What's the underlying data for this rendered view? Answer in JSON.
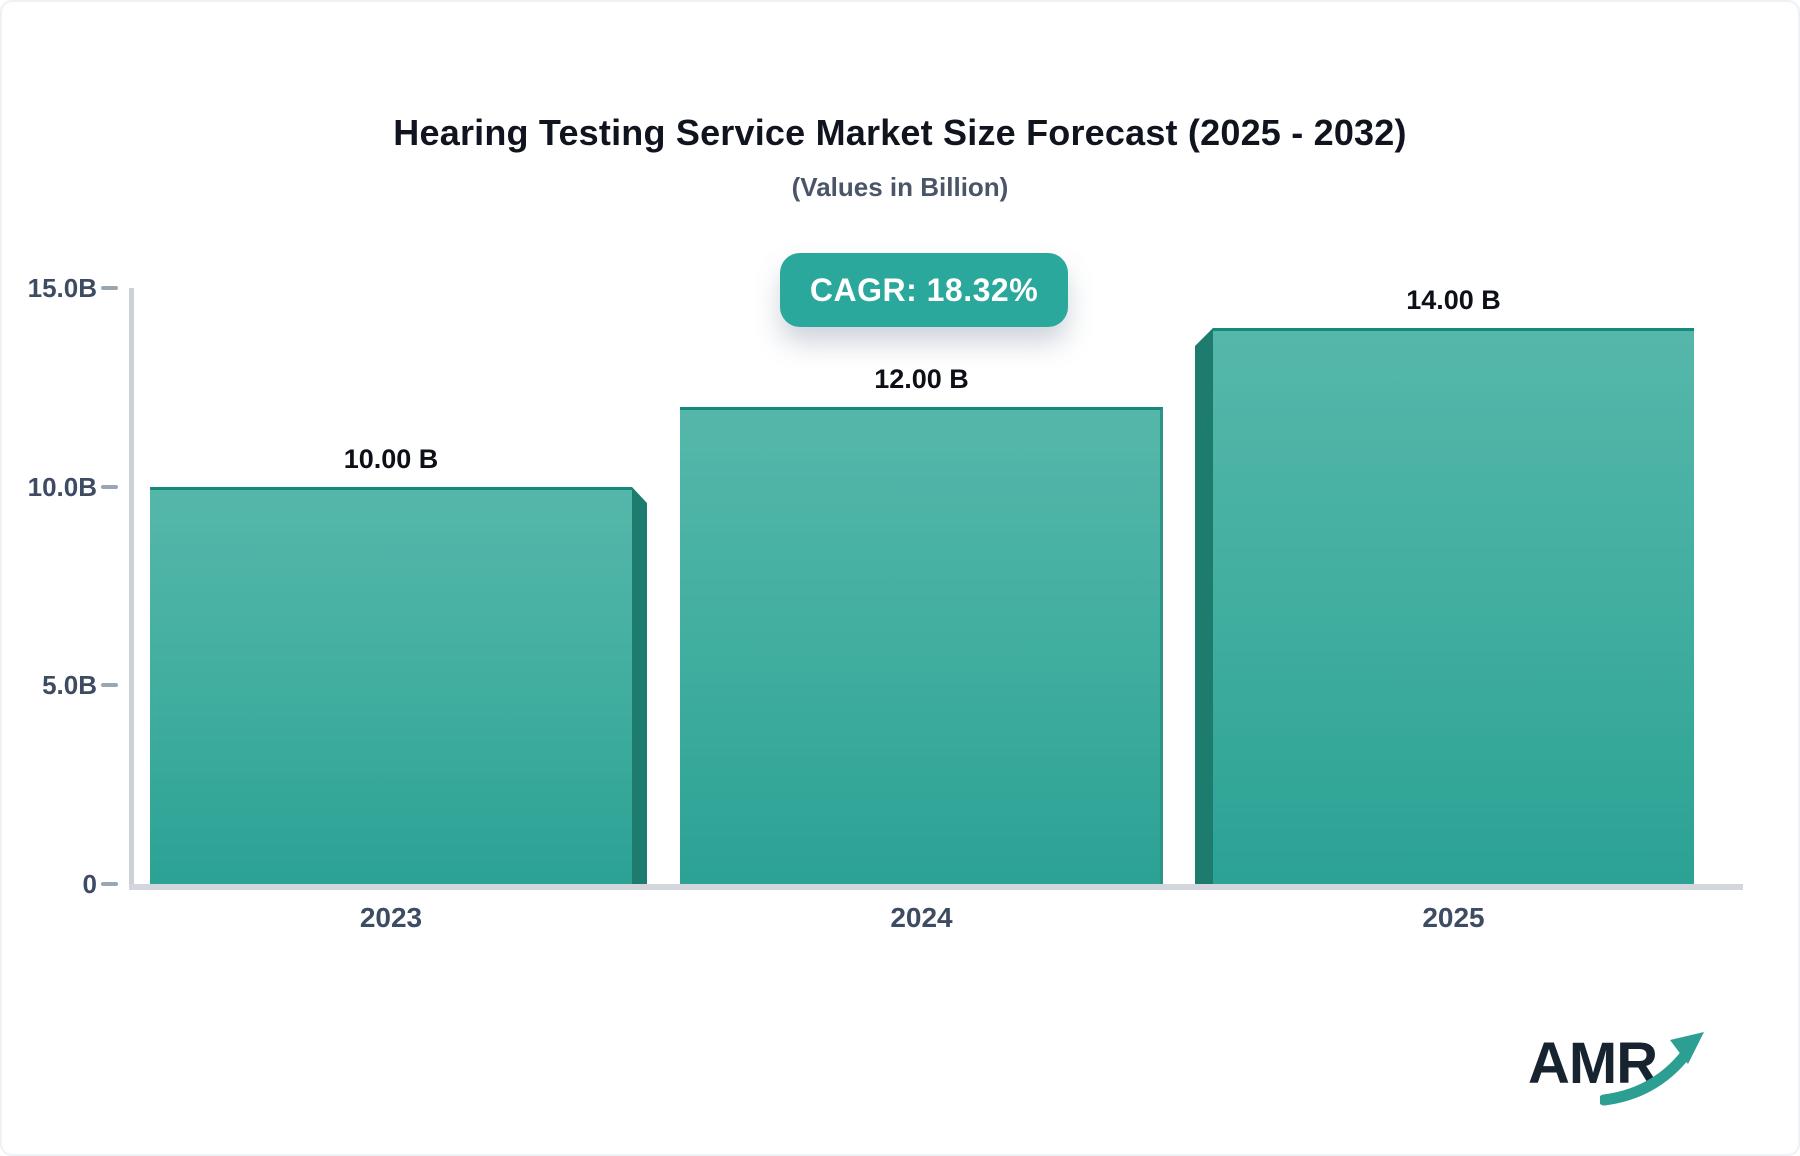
{
  "header": {
    "title": "Hearing Testing Service Market Size Forecast (2025 - 2032)",
    "subtitle": "(Values in Billion)"
  },
  "badge": {
    "label": "CAGR: 18.32%",
    "bg_color": "#2aa89b",
    "text_color": "#ffffff"
  },
  "chart_data": {
    "type": "bar",
    "title": "Hearing Testing Service Market Size Forecast (2025 - 2032)",
    "subtitle": "(Values in Billion)",
    "categories": [
      "2023",
      "2024",
      "2025"
    ],
    "values": [
      10,
      12,
      14
    ],
    "value_labels": [
      "10.00 B",
      "12.00 B",
      "14.00 B"
    ],
    "ylim": [
      0,
      15
    ],
    "yticks": [
      {
        "value": 15,
        "label": "15.0B"
      },
      {
        "value": 10,
        "label": "10.0B"
      },
      {
        "value": 5,
        "label": "5.0B"
      },
      {
        "value": 0,
        "label": "0"
      }
    ],
    "grid": false,
    "legend": "none",
    "annotation": "CAGR: 18.32%",
    "colors": {
      "bar_top": "#55b7aa",
      "bar_bottom": "#2ba294",
      "bar_side": "#1e7c6f",
      "bar_top_edge": "#17897c",
      "axis": "#ccd1d9",
      "tick_text": "#3d4c63",
      "value_text": "#0d1117"
    }
  },
  "logo": {
    "text": "AMR",
    "text_color": "#172430",
    "arrow_color": "#2d9e92"
  }
}
